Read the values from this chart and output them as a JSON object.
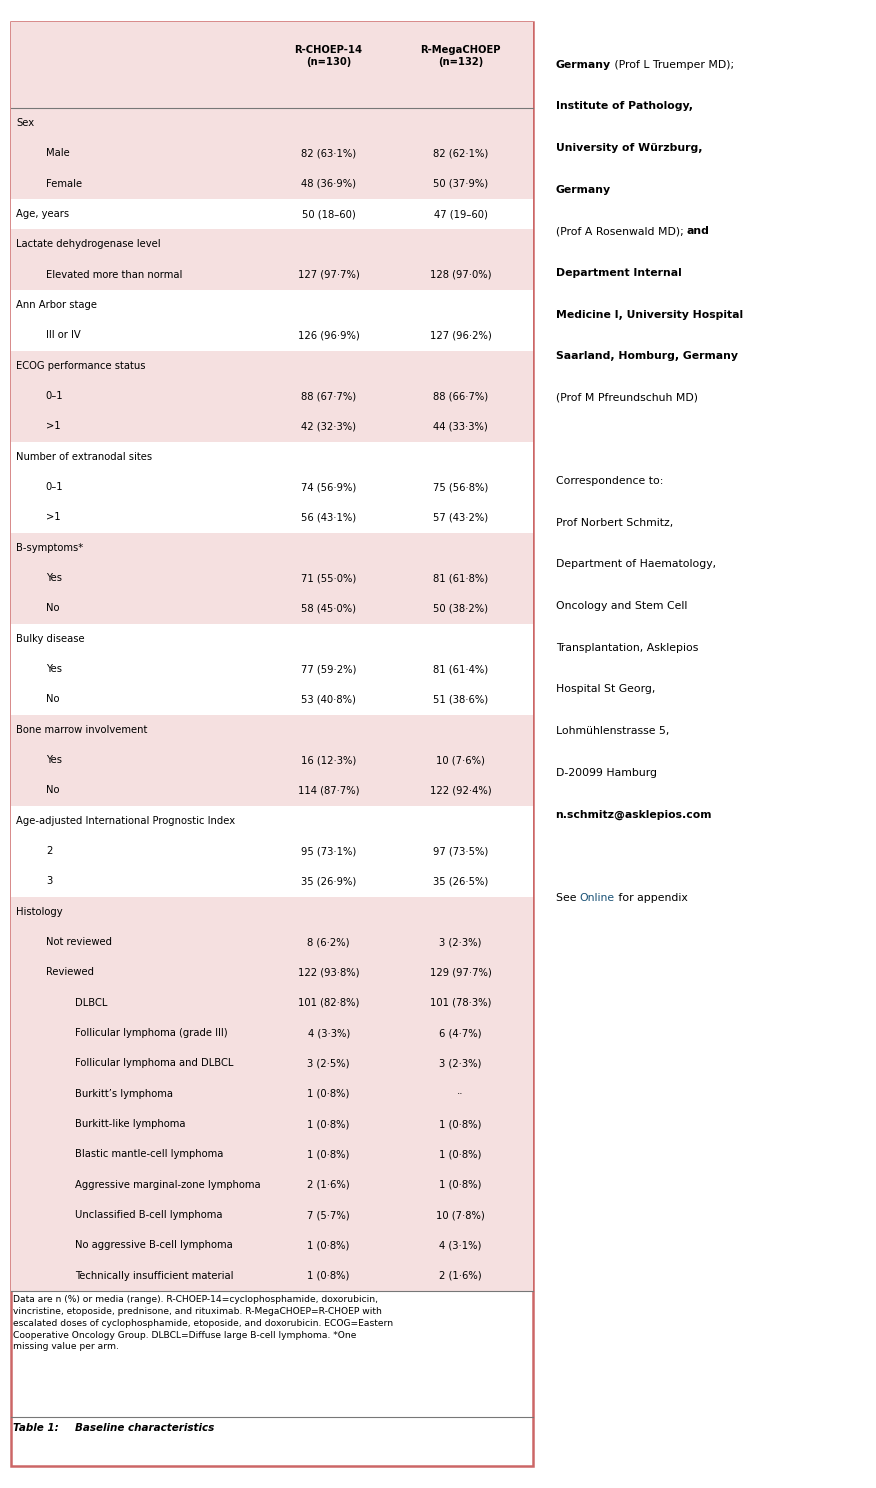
{
  "title": "Table 1: Baseline characteristics",
  "col2_header": "R-CHOEP-14\n(n=130)",
  "col3_header": "R-MegaCHOEP\n(n=132)",
  "pink_row_color": "#f5e0e0",
  "white_row_color": "#ffffff",
  "border_color": "#cc6666",
  "rows": [
    {
      "label": "Sex",
      "indent": 0,
      "val1": "",
      "val2": "",
      "bg": "pink"
    },
    {
      "label": "Male",
      "indent": 1,
      "val1": "82 (63·1%)",
      "val2": "82 (62·1%)",
      "bg": "pink"
    },
    {
      "label": "Female",
      "indent": 1,
      "val1": "48 (36·9%)",
      "val2": "50 (37·9%)",
      "bg": "pink"
    },
    {
      "label": "Age, years",
      "indent": 0,
      "val1": "50 (18–60)",
      "val2": "47 (19–60)",
      "bg": "white"
    },
    {
      "label": "Lactate dehydrogenase level",
      "indent": 0,
      "val1": "",
      "val2": "",
      "bg": "pink"
    },
    {
      "label": "Elevated more than normal",
      "indent": 1,
      "val1": "127 (97·7%)",
      "val2": "128 (97·0%)",
      "bg": "pink"
    },
    {
      "label": "Ann Arbor stage",
      "indent": 0,
      "val1": "",
      "val2": "",
      "bg": "white"
    },
    {
      "label": "III or IV",
      "indent": 1,
      "val1": "126 (96·9%)",
      "val2": "127 (96·2%)",
      "bg": "white"
    },
    {
      "label": "ECOG performance status",
      "indent": 0,
      "val1": "",
      "val2": "",
      "bg": "pink"
    },
    {
      "label": "0–1",
      "indent": 1,
      "val1": "88 (67·7%)",
      "val2": "88 (66·7%)",
      "bg": "pink"
    },
    {
      "label": ">1",
      "indent": 1,
      "val1": "42 (32·3%)",
      "val2": "44 (33·3%)",
      "bg": "pink"
    },
    {
      "label": "Number of extranodal sites",
      "indent": 0,
      "val1": "",
      "val2": "",
      "bg": "white"
    },
    {
      "label": "0–1",
      "indent": 1,
      "val1": "74 (56·9%)",
      "val2": "75 (56·8%)",
      "bg": "white"
    },
    {
      "label": ">1",
      "indent": 1,
      "val1": "56 (43·1%)",
      "val2": "57 (43·2%)",
      "bg": "white"
    },
    {
      "label": "B-symptoms*",
      "indent": 0,
      "val1": "",
      "val2": "",
      "bg": "pink"
    },
    {
      "label": "Yes",
      "indent": 1,
      "val1": "71 (55·0%)",
      "val2": "81 (61·8%)",
      "bg": "pink"
    },
    {
      "label": "No",
      "indent": 1,
      "val1": "58 (45·0%)",
      "val2": "50 (38·2%)",
      "bg": "pink"
    },
    {
      "label": "Bulky disease",
      "indent": 0,
      "val1": "",
      "val2": "",
      "bg": "white"
    },
    {
      "label": "Yes",
      "indent": 1,
      "val1": "77 (59·2%)",
      "val2": "81 (61·4%)",
      "bg": "white"
    },
    {
      "label": "No",
      "indent": 1,
      "val1": "53 (40·8%)",
      "val2": "51 (38·6%)",
      "bg": "white"
    },
    {
      "label": "Bone marrow involvement",
      "indent": 0,
      "val1": "",
      "val2": "",
      "bg": "pink"
    },
    {
      "label": "Yes",
      "indent": 1,
      "val1": "16 (12·3%)",
      "val2": "10 (7·6%)",
      "bg": "pink"
    },
    {
      "label": "No",
      "indent": 1,
      "val1": "114 (87·7%)",
      "val2": "122 (92·4%)",
      "bg": "pink"
    },
    {
      "label": "Age-adjusted International Prognostic Index",
      "indent": 0,
      "val1": "",
      "val2": "",
      "bg": "white"
    },
    {
      "label": "2",
      "indent": 1,
      "val1": "95 (73·1%)",
      "val2": "97 (73·5%)",
      "bg": "white"
    },
    {
      "label": "3",
      "indent": 1,
      "val1": "35 (26·9%)",
      "val2": "35 (26·5%)",
      "bg": "white"
    },
    {
      "label": "Histology",
      "indent": 0,
      "val1": "",
      "val2": "",
      "bg": "pink"
    },
    {
      "label": "Not reviewed",
      "indent": 1,
      "val1": "8 (6·2%)",
      "val2": "3 (2·3%)",
      "bg": "pink"
    },
    {
      "label": "Reviewed",
      "indent": 1,
      "val1": "122 (93·8%)",
      "val2": "129 (97·7%)",
      "bg": "pink"
    },
    {
      "label": "DLBCL",
      "indent": 2,
      "val1": "101 (82·8%)",
      "val2": "101 (78·3%)",
      "bg": "pink"
    },
    {
      "label": "Follicular lymphoma (grade III)",
      "indent": 2,
      "val1": "4 (3·3%)",
      "val2": "6 (4·7%)",
      "bg": "pink"
    },
    {
      "label": "Follicular lymphoma and DLBCL",
      "indent": 2,
      "val1": "3 (2·5%)",
      "val2": "3 (2·3%)",
      "bg": "pink"
    },
    {
      "label": "Burkitt’s lymphoma",
      "indent": 2,
      "val1": "1 (0·8%)",
      "val2": "··",
      "bg": "pink"
    },
    {
      "label": "Burkitt-like lymphoma",
      "indent": 2,
      "val1": "1 (0·8%)",
      "val2": "1 (0·8%)",
      "bg": "pink"
    },
    {
      "label": "Blastic mantle-cell lymphoma",
      "indent": 2,
      "val1": "1 (0·8%)",
      "val2": "1 (0·8%)",
      "bg": "pink"
    },
    {
      "label": "Aggressive marginal-zone lymphoma",
      "indent": 2,
      "val1": "2 (1·6%)",
      "val2": "1 (0·8%)",
      "bg": "pink"
    },
    {
      "label": "Unclassified B-cell lymphoma",
      "indent": 2,
      "val1": "7 (5·7%)",
      "val2": "10 (7·8%)",
      "bg": "pink"
    },
    {
      "label": "No aggressive B-cell lymphoma",
      "indent": 2,
      "val1": "1 (0·8%)",
      "val2": "4 (3·1%)",
      "bg": "pink"
    },
    {
      "label": "Technically insufficient material",
      "indent": 2,
      "val1": "1 (0·8%)",
      "val2": "2 (1·6%)",
      "bg": "pink"
    }
  ],
  "footnote": "Data are n (%) or media (range). R-CHOEP-14=cyclophosphamide, doxorubicin,\nvincristine, etoposide, prednisone, and rituximab. R-MegaCHOEP=R-CHOEP with\nescalated doses of cyclophosphamide, etoposide, and doxorubicin. ECOG=Eastern\nCooperative Oncology Group. DLBCL=Diffuse large B-cell lymphoma. *One\nmissing value per arm.",
  "right_text": [
    [
      [
        "Germany",
        "bold"
      ],
      [
        " (Prof L Truemper MD);",
        "normal"
      ]
    ],
    [
      [
        "Institute of Pathology,",
        "bold"
      ]
    ],
    [
      [
        "University of Würzburg,",
        "bold"
      ]
    ],
    [
      [
        "Germany",
        "bold"
      ]
    ],
    [
      [
        "(Prof A Rosenwald MD); ",
        "normal"
      ],
      [
        "and",
        "bold"
      ]
    ],
    [
      [
        "Department Internal",
        "bold"
      ]
    ],
    [
      [
        "Medicine I, University Hospital",
        "bold"
      ]
    ],
    [
      [
        "Saarland, Homburg, Germany",
        "bold"
      ]
    ],
    [
      [
        "(Prof M Pfreundschuh MD)",
        "normal"
      ]
    ],
    [
      [
        "",
        "normal"
      ]
    ],
    [
      [
        "Correspondence to:",
        "normal"
      ]
    ],
    [
      [
        "Prof Norbert Schmitz,",
        "normal"
      ]
    ],
    [
      [
        "Department of Haematology,",
        "normal"
      ]
    ],
    [
      [
        "Oncology and Stem Cell",
        "normal"
      ]
    ],
    [
      [
        "Transplantation, Asklepios",
        "normal"
      ]
    ],
    [
      [
        "Hospital St Georg,",
        "normal"
      ]
    ],
    [
      [
        "Lohmühlenstrasse 5,",
        "normal"
      ]
    ],
    [
      [
        "D-20099 Hamburg",
        "normal"
      ]
    ],
    [
      [
        "n.schmitz@asklepios.com",
        "bold"
      ]
    ],
    [
      [
        "",
        "normal"
      ]
    ],
    [
      [
        "See ",
        "normal"
      ],
      [
        "Online",
        "blue"
      ],
      [
        " for appendix",
        "normal"
      ]
    ]
  ]
}
